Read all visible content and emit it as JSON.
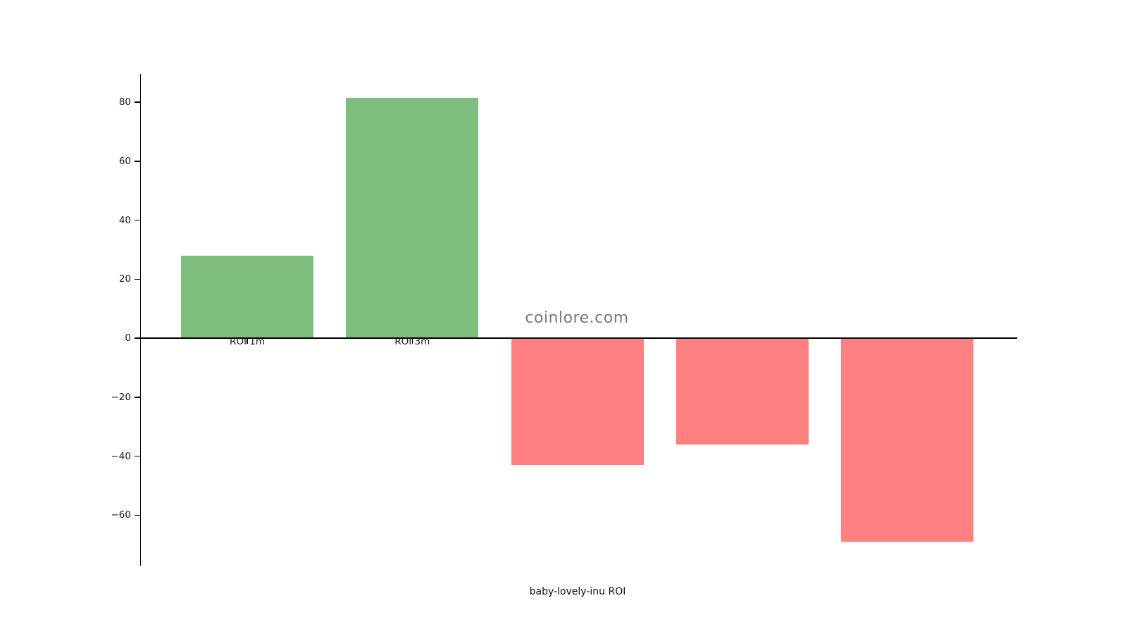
{
  "watermark": "coinlore.com",
  "chart_data": {
    "type": "bar",
    "title": "baby-lovely-inu ROI",
    "categories": [
      "ROI 1m",
      "ROI 3m",
      "",
      "",
      ""
    ],
    "values": [
      28,
      81.5,
      -43,
      -36,
      -69
    ],
    "bar_colors": [
      "#7dbe7d",
      "#7dbe7d",
      "#ff8080",
      "#ff8080",
      "#ff8080"
    ],
    "positive_color": "#7dbe7d",
    "negative_color": "#ff8080",
    "yticks": [
      80,
      60,
      40,
      20,
      0,
      -20,
      -40,
      -60
    ],
    "ylim": [
      -77,
      90
    ],
    "xlabel": "",
    "ylabel": "",
    "grid": false,
    "legend": null,
    "layout_note": "x tick labels of the three negative bars are hidden behind the bars; watermark centered in plot area"
  }
}
